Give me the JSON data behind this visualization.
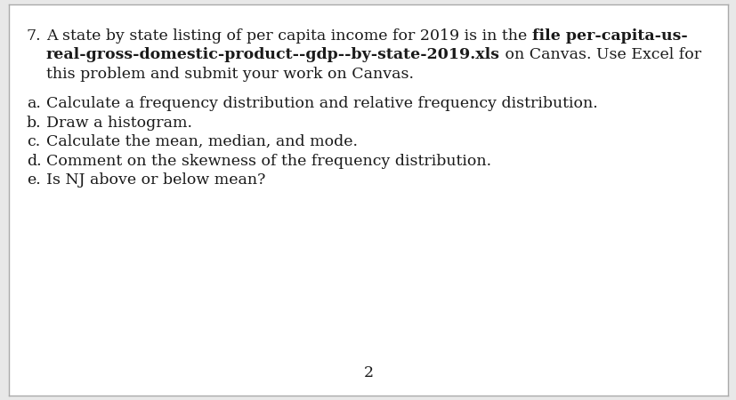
{
  "background_color": "#e8e8e8",
  "page_background": "#ffffff",
  "border_color": "#aaaaaa",
  "sub_items": [
    {
      "label": "a.",
      "text": "Calculate a frequency distribution and relative frequency distribution."
    },
    {
      "label": "b.",
      "text": "Draw a histogram."
    },
    {
      "label": "c.",
      "text": "Calculate the mean, median, and mode."
    },
    {
      "label": "d.",
      "text": "Comment on the skewness of the frequency distribution."
    },
    {
      "label": "e.",
      "text": "Is NJ above or below mean?"
    }
  ],
  "page_number": "2",
  "font_size_main": 12.5,
  "text_color": "#1a1a1a",
  "font_family": "DejaVu Serif"
}
